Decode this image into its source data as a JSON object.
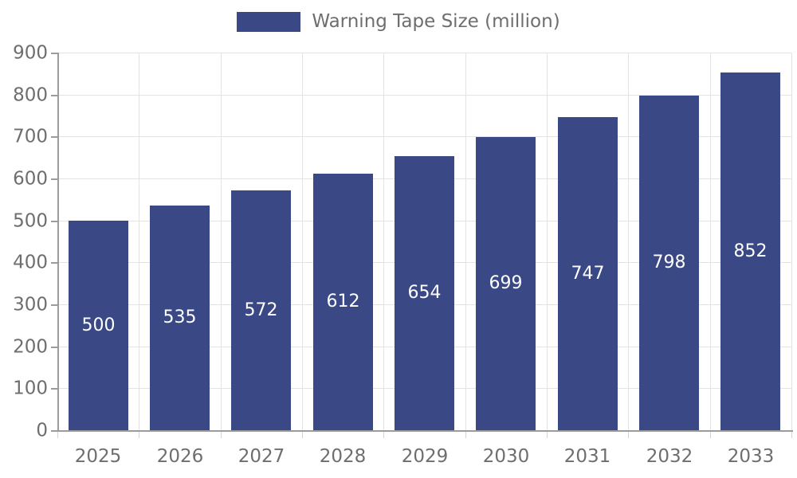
{
  "legend": {
    "label": "Warning Tape Size (million)"
  },
  "colors": {
    "bar": "#3A4985",
    "grid": "#e3e3e3",
    "axis": "#9b9b9b",
    "tick_text": "#6e6e6e",
    "value_label": "#ffffff"
  },
  "chart_data": {
    "type": "bar",
    "title": "Warning Tape Size (million)",
    "categories": [
      "2025",
      "2026",
      "2027",
      "2028",
      "2029",
      "2030",
      "2031",
      "2032",
      "2033"
    ],
    "values": [
      500,
      535,
      572,
      612,
      654,
      699,
      747,
      798,
      852
    ],
    "xlabel": "",
    "ylabel": "",
    "ylim": [
      0,
      900
    ],
    "ytick_step": 100,
    "yticks": [
      0,
      100,
      200,
      300,
      400,
      500,
      600,
      700,
      800,
      900
    ],
    "grid": true,
    "legend_position": "top-center",
    "value_labels": "inside-center",
    "bar_color": "#3A4985"
  }
}
